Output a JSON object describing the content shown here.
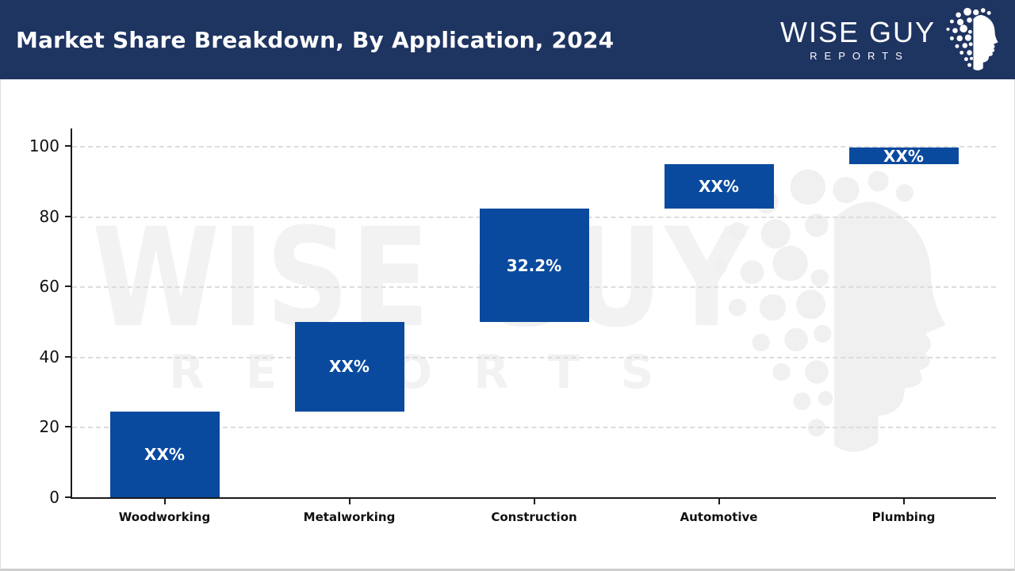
{
  "header": {
    "title": "Market Share Breakdown, By Application, 2024",
    "background_color": "#1e3461",
    "logo": {
      "name": "WISE GUY",
      "sub": "REPORTS"
    }
  },
  "watermark": {
    "line1": "WISE GUY",
    "line2": "REPORTS",
    "color": "#f2f2f2"
  },
  "chart_data": {
    "type": "bar",
    "subtype": "waterfall",
    "title": "",
    "xlabel": "",
    "ylabel": "",
    "categories": [
      "Woodworking",
      "Metalworking",
      "Construction",
      "Automotive",
      "Plumbing"
    ],
    "segments": [
      {
        "start": 0,
        "end": 24.4
      },
      {
        "start": 24.4,
        "end": 49.9
      },
      {
        "start": 49.9,
        "end": 82.1
      },
      {
        "start": 82.1,
        "end": 94.8
      },
      {
        "start": 94.8,
        "end": 99.5
      }
    ],
    "bar_labels": [
      "XX%",
      "XX%",
      "32.2%",
      "XX%",
      "XX%"
    ],
    "yticks": [
      0,
      20,
      40,
      60,
      80,
      100
    ],
    "ylim": [
      0,
      105
    ],
    "grid": "horizontal-dashed",
    "legend": "none",
    "bar_color": "#0a4a9e",
    "bar_label_color": "#ffffff"
  }
}
